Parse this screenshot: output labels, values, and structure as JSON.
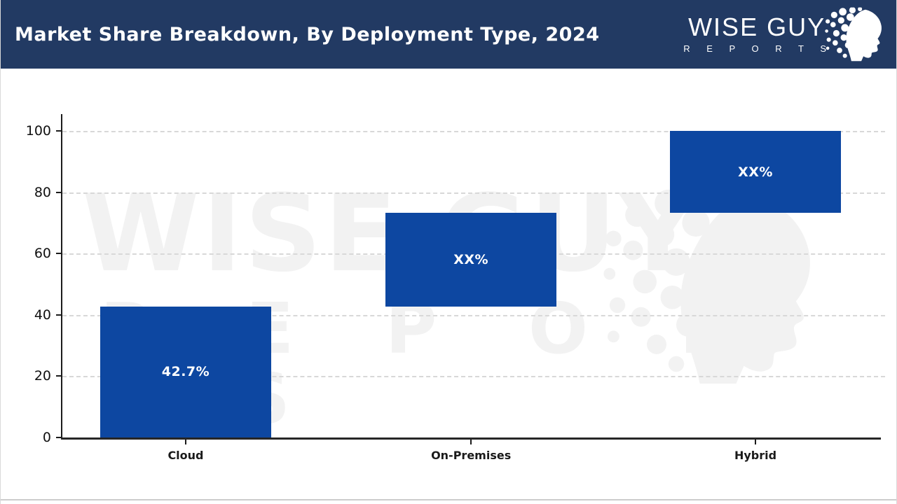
{
  "header": {
    "title": "Market Share Breakdown, By Deployment Type, 2024",
    "logo": {
      "line1": "WISE GUY",
      "line2": "R E P O R T S"
    }
  },
  "watermark": {
    "line1": "WISE GUY",
    "line2": "R E P O R T S"
  },
  "colors": {
    "header_bg": "#223A63",
    "bar_fill": "#0D47A1",
    "gridline": "#D8D8D8",
    "title_text": "#FFFFFF",
    "axis_text": "#111111",
    "watermark": "#F2F2F2"
  },
  "chart_data": {
    "type": "bar",
    "subtype": "waterfall",
    "title": "Market Share Breakdown, By Deployment Type, 2024",
    "xlabel": "",
    "ylabel": "",
    "categories": [
      "Cloud",
      "On-Premises",
      "Hybrid"
    ],
    "segments": [
      {
        "category": "Cloud",
        "start": 0,
        "end": 42.7,
        "label": "42.7%"
      },
      {
        "category": "On-Premises",
        "start": 42.7,
        "end": 73.3,
        "label": "XX%"
      },
      {
        "category": "Hybrid",
        "start": 73.3,
        "end": 100,
        "label": "XX%"
      }
    ],
    "yticks": [
      0,
      20,
      40,
      60,
      80,
      100
    ],
    "ylim": [
      0,
      105.5
    ],
    "grid": "dashed-horizontal",
    "legend": "none",
    "bar_centers_frac": [
      0.1508,
      0.4997,
      0.8475
    ],
    "bar_width_frac": 0.2091
  }
}
